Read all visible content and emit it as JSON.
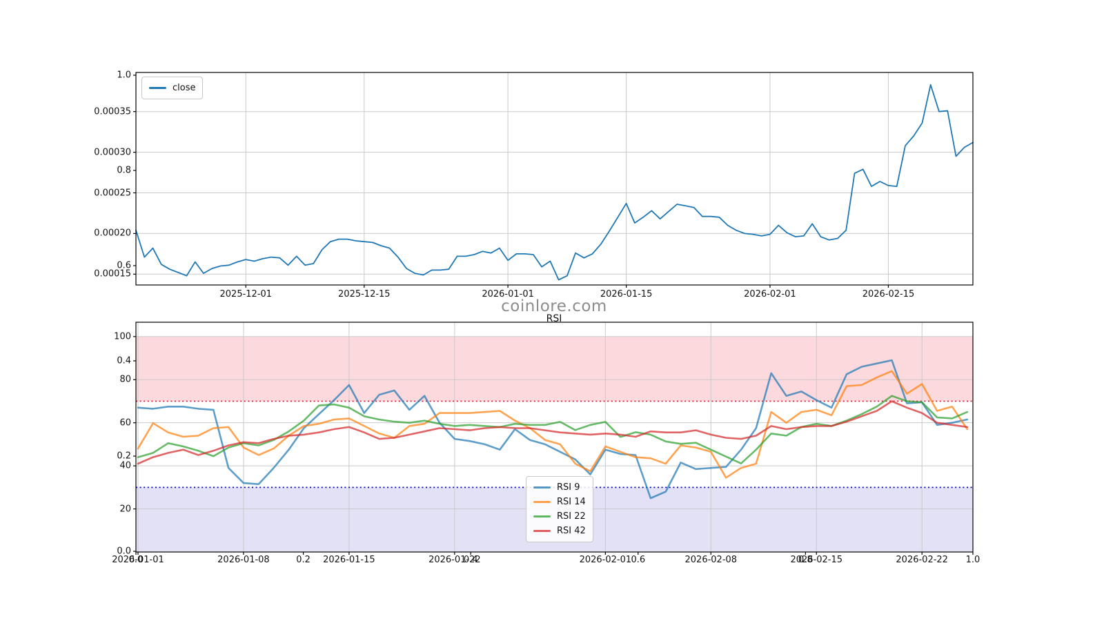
{
  "watermark": "coinlore.com",
  "colors": {
    "close_line": "#1f77b4",
    "rsi9": "#1f77b4",
    "rsi14": "#ff7f0e",
    "rsi22": "#2ca02c",
    "rsi42": "#d62728",
    "grid": "#c9c9c9",
    "spine": "#000000",
    "overbought_band": "#fbd9dc",
    "oversold_band": "#e2e1f6",
    "overbought_line": "#d8102e",
    "oversold_line": "#0000bb",
    "watermark_text": "#8c8c8c"
  },
  "overlay_axis": {
    "x_tick_labels": [
      "0.0",
      "0.2",
      "0.4",
      "0.6",
      "0.8",
      "1.0"
    ],
    "y_tick_labels": [
      "0.0",
      "0.2",
      "0.4",
      "0.6",
      "0.8",
      "1.0"
    ]
  },
  "chart_data": [
    {
      "type": "line",
      "name": "price-subplot",
      "legend_label": "close",
      "legend_position": "upper left",
      "grid": true,
      "ylim": [
        0.000137,
        0.000397
      ],
      "y_tick_labels": [
        "0.00015",
        "0.00020",
        "0.00025",
        "0.00030",
        "0.00035"
      ],
      "x_tick_labels": [
        "2025-12-01",
        "2025-12-15",
        "2026-01-01",
        "2026-01-15",
        "2026-02-01",
        "2026-02-15"
      ],
      "dates": [
        "2025-11-18",
        "2025-11-19",
        "2025-11-20",
        "2025-11-21",
        "2025-11-22",
        "2025-11-23",
        "2025-11-24",
        "2025-11-25",
        "2025-11-26",
        "2025-11-27",
        "2025-11-28",
        "2025-11-29",
        "2025-11-30",
        "2025-12-01",
        "2025-12-02",
        "2025-12-03",
        "2025-12-04",
        "2025-12-05",
        "2025-12-06",
        "2025-12-07",
        "2025-12-08",
        "2025-12-09",
        "2025-12-10",
        "2025-12-11",
        "2025-12-12",
        "2025-12-13",
        "2025-12-14",
        "2025-12-15",
        "2025-12-16",
        "2025-12-17",
        "2025-12-18",
        "2025-12-19",
        "2025-12-20",
        "2025-12-21",
        "2025-12-22",
        "2025-12-23",
        "2025-12-24",
        "2025-12-25",
        "2025-12-26",
        "2025-12-27",
        "2025-12-28",
        "2025-12-29",
        "2025-12-30",
        "2025-12-31",
        "2026-01-01",
        "2026-01-02",
        "2026-01-03",
        "2026-01-04",
        "2026-01-05",
        "2026-01-06",
        "2026-01-07",
        "2026-01-08",
        "2026-01-09",
        "2026-01-10",
        "2026-01-11",
        "2026-01-12",
        "2026-01-13",
        "2026-01-14",
        "2026-01-15",
        "2026-01-16",
        "2026-01-17",
        "2026-01-18",
        "2026-01-19",
        "2026-01-20",
        "2026-01-21",
        "2026-01-22",
        "2026-01-23",
        "2026-01-24",
        "2026-01-25",
        "2026-01-26",
        "2026-01-27",
        "2026-01-28",
        "2026-01-29",
        "2026-01-30",
        "2026-01-31",
        "2026-02-01",
        "2026-02-02",
        "2026-02-03",
        "2026-02-04",
        "2026-02-05",
        "2026-02-06",
        "2026-02-07",
        "2026-02-08",
        "2026-02-09",
        "2026-02-10",
        "2026-02-11",
        "2026-02-12",
        "2026-02-13",
        "2026-02-14",
        "2026-02-15",
        "2026-02-16",
        "2026-02-17",
        "2026-02-18",
        "2026-02-19",
        "2026-02-20",
        "2026-02-21",
        "2026-02-22",
        "2026-02-23",
        "2026-02-24",
        "2026-02-25"
      ],
      "series": [
        {
          "name": "close",
          "color": "#1f77b4",
          "values": [
            0.000204,
            0.000171,
            0.000182,
            0.000162,
            0.000156,
            0.000152,
            0.000148,
            0.000165,
            0.000151,
            0.000157,
            0.00016,
            0.000161,
            0.000165,
            0.000168,
            0.000166,
            0.000169,
            0.000171,
            0.00017,
            0.000161,
            0.000172,
            0.000161,
            0.000163,
            0.00018,
            0.00019,
            0.000193,
            0.000193,
            0.000191,
            0.00019,
            0.000189,
            0.000185,
            0.000182,
            0.000171,
            0.000157,
            0.000151,
            0.000149,
            0.000155,
            0.000155,
            0.000156,
            0.000172,
            0.000172,
            0.000174,
            0.000178,
            0.000176,
            0.000182,
            0.000167,
            0.000175,
            0.000175,
            0.000174,
            0.000159,
            0.000166,
            0.000143,
            0.000148,
            0.000176,
            0.00017,
            0.000175,
            0.000187,
            0.000203,
            0.00022,
            0.000237,
            0.000213,
            0.00022,
            0.000228,
            0.000218,
            0.000227,
            0.000236,
            0.000234,
            0.000232,
            0.000221,
            0.000221,
            0.00022,
            0.00021,
            0.000204,
            0.0002,
            0.000199,
            0.000197,
            0.000199,
            0.00021,
            0.000201,
            0.000196,
            0.000197,
            0.000212,
            0.000196,
            0.000192,
            0.000194,
            0.000204,
            0.000274,
            0.000279,
            0.000258,
            0.000264,
            0.000259,
            0.000258,
            0.000308,
            0.00032,
            0.000336,
            0.000383,
            0.00035,
            0.000351,
            0.000295,
            0.000306,
            0.000312
          ]
        }
      ]
    },
    {
      "type": "line",
      "name": "rsi-subplot",
      "title": "RSI",
      "legend_position": "lower center",
      "grid": true,
      "ylim": [
        0,
        106
      ],
      "overbought_level": 70,
      "oversold_level": 30,
      "y_tick_labels": [
        "20",
        "40",
        "60",
        "80",
        "100"
      ],
      "x_tick_labels": [
        "2026-01-01",
        "2026-01-08",
        "2026-01-15",
        "2026-01-22",
        "2026-02-01",
        "2026-02-08",
        "2026-02-15",
        "2026-02-22"
      ],
      "dates": [
        "2026-01-01",
        "2026-01-02",
        "2026-01-03",
        "2026-01-04",
        "2026-01-05",
        "2026-01-06",
        "2026-01-07",
        "2026-01-08",
        "2026-01-09",
        "2026-01-10",
        "2026-01-11",
        "2026-01-12",
        "2026-01-13",
        "2026-01-14",
        "2026-01-15",
        "2026-01-16",
        "2026-01-17",
        "2026-01-18",
        "2026-01-19",
        "2026-01-20",
        "2026-01-21",
        "2026-01-22",
        "2026-01-23",
        "2026-01-24",
        "2026-01-25",
        "2026-01-26",
        "2026-01-27",
        "2026-01-28",
        "2026-01-29",
        "2026-01-30",
        "2026-01-31",
        "2026-02-01",
        "2026-02-02",
        "2026-02-03",
        "2026-02-04",
        "2026-02-05",
        "2026-02-06",
        "2026-02-07",
        "2026-02-08",
        "2026-02-09",
        "2026-02-10",
        "2026-02-11",
        "2026-02-12",
        "2026-02-13",
        "2026-02-14",
        "2026-02-15",
        "2026-02-16",
        "2026-02-17",
        "2026-02-18",
        "2026-02-19",
        "2026-02-20",
        "2026-02-21",
        "2026-02-22",
        "2026-02-23",
        "2026-02-24",
        "2026-02-25"
      ],
      "series": [
        {
          "name": "RSI 9",
          "color": "#1f77b4",
          "values": [
            67,
            66.5,
            67.5,
            67.5,
            66.5,
            66,
            39,
            32,
            31.5,
            39,
            47.5,
            57.5,
            64,
            70.5,
            77.5,
            64.5,
            73,
            75,
            66,
            72.5,
            60,
            52.5,
            51.5,
            50,
            47.5,
            57,
            52,
            50,
            46.5,
            43,
            36,
            47.5,
            45.5,
            45,
            25,
            28,
            41.5,
            38.5,
            39,
            39.5,
            47.5,
            57.5,
            83,
            72.5,
            74.5,
            70.5,
            67,
            82.5,
            86,
            87.5,
            89,
            69,
            69.5,
            59,
            60,
            61.5
          ]
        },
        {
          "name": "RSI 14",
          "color": "#ff7f0e",
          "values": [
            48,
            59.8,
            55.5,
            53.5,
            54,
            57.5,
            58,
            48.5,
            45,
            48,
            54,
            58.5,
            59.5,
            61.5,
            62,
            58.5,
            55,
            53,
            58.5,
            59.5,
            64.5,
            64.5,
            64.5,
            65,
            65.5,
            61,
            57.5,
            52,
            50,
            41,
            37.5,
            49,
            46.5,
            44,
            43.5,
            41,
            49.5,
            48.5,
            46.5,
            34.5,
            39,
            41,
            65,
            60,
            65,
            66,
            63.5,
            77,
            77.5,
            81,
            84,
            73.5,
            78,
            65.5,
            67.5,
            57
          ]
        },
        {
          "name": "RSI 22",
          "color": "#2ca02c",
          "values": [
            44,
            46,
            50.5,
            49,
            47,
            44.5,
            48.5,
            50.5,
            49.5,
            52,
            56,
            61,
            68,
            68.5,
            67,
            63,
            61.5,
            60.5,
            60,
            61,
            59.5,
            58.5,
            59,
            58.5,
            58,
            59.5,
            59,
            59,
            60.4,
            56.6,
            59,
            60.4,
            53.4,
            55.6,
            54.5,
            51.3,
            50.2,
            50.7,
            47.5,
            44.3,
            41.1,
            47.5,
            55,
            54,
            58,
            59.5,
            58.5,
            61,
            64,
            67.5,
            72.5,
            70,
            69.5,
            62.5,
            62,
            65
          ]
        },
        {
          "name": "RSI 42",
          "color": "#d62728",
          "values": [
            41,
            44,
            46,
            47.5,
            45,
            47,
            49.5,
            51,
            50.5,
            52.5,
            54,
            54.5,
            55.5,
            57,
            58,
            55.5,
            52.5,
            53,
            54.5,
            56,
            57.5,
            57,
            56.5,
            57.5,
            58,
            57.5,
            57.5,
            56.5,
            55.5,
            55,
            54.5,
            55,
            54.5,
            53.5,
            56,
            55.5,
            55.5,
            56.5,
            54.5,
            53,
            52.5,
            54,
            58.5,
            57,
            58,
            58.5,
            58.5,
            60.5,
            63,
            65.5,
            70,
            67,
            64.5,
            60,
            59,
            58
          ]
        }
      ]
    }
  ]
}
